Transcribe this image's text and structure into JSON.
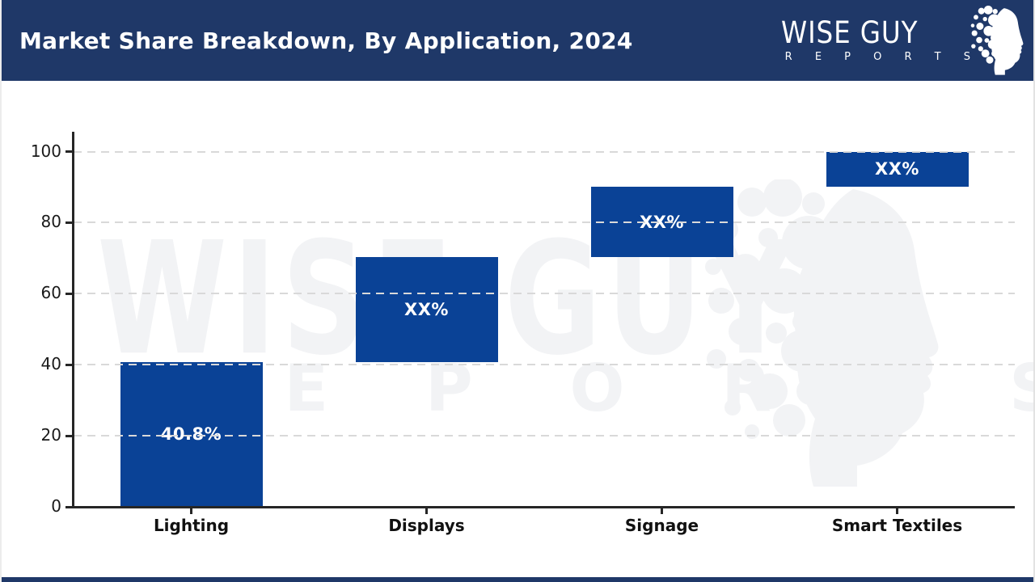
{
  "header": {
    "title": "Market Share Breakdown, By Application, 2024",
    "bg_color": "#1f3868",
    "logo": {
      "line1": "WISE GUY",
      "line2": "R E P O R T S"
    }
  },
  "watermark": {
    "line1": "WISE GUY",
    "line2": "R E P O R T S",
    "color": "#f2f3f5"
  },
  "footer": {
    "bg_color": "#1f3868"
  },
  "chart_data": {
    "type": "bar",
    "subtype": "waterfall",
    "title": "Market Share Breakdown, By Application, 2024",
    "categories": [
      "Lighting",
      "Displays",
      "Signage",
      "Smart Textiles"
    ],
    "segments": [
      {
        "category": "Lighting",
        "start": 0,
        "end": 40.8,
        "label": "40.8%"
      },
      {
        "category": "Displays",
        "start": 40.8,
        "end": 70.4,
        "label": "XX%"
      },
      {
        "category": "Signage",
        "start": 70.4,
        "end": 90,
        "label": "XX%"
      },
      {
        "category": "Smart Textiles",
        "start": 90,
        "end": 100,
        "label": "XX%"
      }
    ],
    "ylim": [
      0,
      100
    ],
    "yticks": [
      0,
      20,
      40,
      60,
      80,
      100
    ],
    "grid": "horizontal-dashed",
    "gridline_color": "#d9d9d9",
    "legend": "none",
    "bar_color": "#0a4296",
    "bar_label_color": "#ffffff",
    "axis_color": "#262626"
  }
}
